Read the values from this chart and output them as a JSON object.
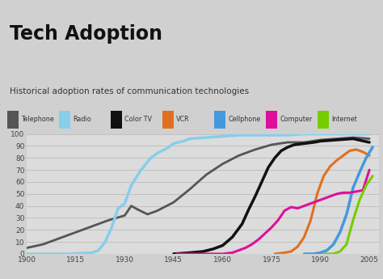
{
  "title": "Tech Adoption",
  "subtitle": "Historical adoption rates of communication technologies",
  "title_bg": "#ffffff",
  "subtitle_bg": "#ebebeb",
  "chart_bg": "#dcdcdc",
  "fig_bg": "#d0d0d0",
  "xlim": [
    1900,
    2008
  ],
  "ylim": [
    0,
    100
  ],
  "xticks": [
    1900,
    1915,
    1930,
    1945,
    1960,
    1975,
    1990,
    2005
  ],
  "yticks": [
    0,
    10,
    20,
    30,
    40,
    50,
    60,
    70,
    80,
    90,
    100
  ],
  "legend_items": [
    {
      "label": "Telephone",
      "color": "#555555"
    },
    {
      "label": "Radio",
      "color": "#87CEEB"
    },
    {
      "label": "Color TV",
      "color": "#111111"
    },
    {
      "label": "VCR",
      "color": "#E07020"
    },
    {
      "label": "Cellphone",
      "color": "#4499DD"
    },
    {
      "label": "Computer",
      "color": "#DD1199"
    },
    {
      "label": "Internet",
      "color": "#77CC00"
    }
  ],
  "series": [
    {
      "name": "Telephone",
      "color": "#555555",
      "linewidth": 2.0,
      "data": [
        [
          1900,
          5
        ],
        [
          1905,
          8
        ],
        [
          1910,
          13
        ],
        [
          1915,
          18
        ],
        [
          1920,
          23
        ],
        [
          1925,
          28
        ],
        [
          1930,
          32
        ],
        [
          1932,
          40
        ],
        [
          1934,
          37
        ],
        [
          1937,
          33
        ],
        [
          1940,
          36
        ],
        [
          1945,
          43
        ],
        [
          1950,
          54
        ],
        [
          1955,
          66
        ],
        [
          1960,
          75
        ],
        [
          1965,
          82
        ],
        [
          1970,
          87
        ],
        [
          1975,
          91
        ],
        [
          1980,
          93
        ],
        [
          1985,
          93
        ],
        [
          1990,
          95
        ],
        [
          1995,
          96
        ],
        [
          2000,
          97
        ],
        [
          2005,
          96
        ]
      ]
    },
    {
      "name": "Radio",
      "color": "#87CEEB",
      "linewidth": 2.5,
      "data": [
        [
          1900,
          0
        ],
        [
          1913,
          0
        ],
        [
          1920,
          1
        ],
        [
          1922,
          3
        ],
        [
          1924,
          10
        ],
        [
          1926,
          22
        ],
        [
          1928,
          38
        ],
        [
          1930,
          42
        ],
        [
          1932,
          57
        ],
        [
          1935,
          70
        ],
        [
          1938,
          80
        ],
        [
          1940,
          84
        ],
        [
          1943,
          88
        ],
        [
          1945,
          92
        ],
        [
          1948,
          94
        ],
        [
          1950,
          96
        ],
        [
          1955,
          97
        ],
        [
          1960,
          98
        ],
        [
          1965,
          99
        ],
        [
          1970,
          99
        ],
        [
          1975,
          99
        ],
        [
          1980,
          99
        ],
        [
          1985,
          100
        ],
        [
          1990,
          100
        ],
        [
          1995,
          100
        ],
        [
          2000,
          100
        ],
        [
          2005,
          100
        ]
      ]
    },
    {
      "name": "Color TV",
      "color": "#111111",
      "linewidth": 2.5,
      "data": [
        [
          1945,
          0
        ],
        [
          1950,
          1
        ],
        [
          1954,
          2
        ],
        [
          1957,
          4
        ],
        [
          1960,
          7
        ],
        [
          1963,
          14
        ],
        [
          1966,
          25
        ],
        [
          1968,
          37
        ],
        [
          1970,
          48
        ],
        [
          1972,
          60
        ],
        [
          1974,
          72
        ],
        [
          1976,
          80
        ],
        [
          1978,
          86
        ],
        [
          1980,
          89
        ],
        [
          1982,
          91
        ],
        [
          1985,
          92
        ],
        [
          1988,
          93
        ],
        [
          1990,
          94
        ],
        [
          1995,
          95
        ],
        [
          2000,
          96
        ],
        [
          2005,
          93
        ]
      ]
    },
    {
      "name": "VCR",
      "color": "#E07020",
      "linewidth": 2.2,
      "data": [
        [
          1976,
          0
        ],
        [
          1979,
          1
        ],
        [
          1981,
          2
        ],
        [
          1983,
          6
        ],
        [
          1985,
          14
        ],
        [
          1987,
          28
        ],
        [
          1989,
          50
        ],
        [
          1991,
          65
        ],
        [
          1993,
          73
        ],
        [
          1995,
          78
        ],
        [
          1997,
          82
        ],
        [
          1999,
          86
        ],
        [
          2001,
          87
        ],
        [
          2003,
          85
        ],
        [
          2005,
          82
        ]
      ]
    },
    {
      "name": "Cellphone",
      "color": "#4499DD",
      "linewidth": 2.5,
      "data": [
        [
          1985,
          0
        ],
        [
          1988,
          0
        ],
        [
          1990,
          1
        ],
        [
          1992,
          3
        ],
        [
          1994,
          8
        ],
        [
          1996,
          18
        ],
        [
          1998,
          33
        ],
        [
          2000,
          55
        ],
        [
          2002,
          68
        ],
        [
          2004,
          80
        ],
        [
          2006,
          89
        ]
      ]
    },
    {
      "name": "Computer",
      "color": "#DD1199",
      "linewidth": 2.2,
      "data": [
        [
          1946,
          0
        ],
        [
          1950,
          0
        ],
        [
          1955,
          0
        ],
        [
          1960,
          0
        ],
        [
          1963,
          1
        ],
        [
          1965,
          3
        ],
        [
          1967,
          5
        ],
        [
          1969,
          8
        ],
        [
          1971,
          12
        ],
        [
          1973,
          17
        ],
        [
          1975,
          22
        ],
        [
          1977,
          28
        ],
        [
          1979,
          36
        ],
        [
          1981,
          39
        ],
        [
          1983,
          38
        ],
        [
          1985,
          40
        ],
        [
          1987,
          42
        ],
        [
          1989,
          44
        ],
        [
          1991,
          46
        ],
        [
          1993,
          48
        ],
        [
          1995,
          50
        ],
        [
          1997,
          51
        ],
        [
          1999,
          51
        ],
        [
          2001,
          52
        ],
        [
          2003,
          53
        ],
        [
          2005,
          70
        ]
      ]
    },
    {
      "name": "Internet",
      "color": "#77CC00",
      "linewidth": 2.2,
      "data": [
        [
          1991,
          0
        ],
        [
          1994,
          0
        ],
        [
          1996,
          2
        ],
        [
          1998,
          8
        ],
        [
          2000,
          28
        ],
        [
          2002,
          45
        ],
        [
          2004,
          57
        ],
        [
          2006,
          65
        ]
      ]
    }
  ]
}
